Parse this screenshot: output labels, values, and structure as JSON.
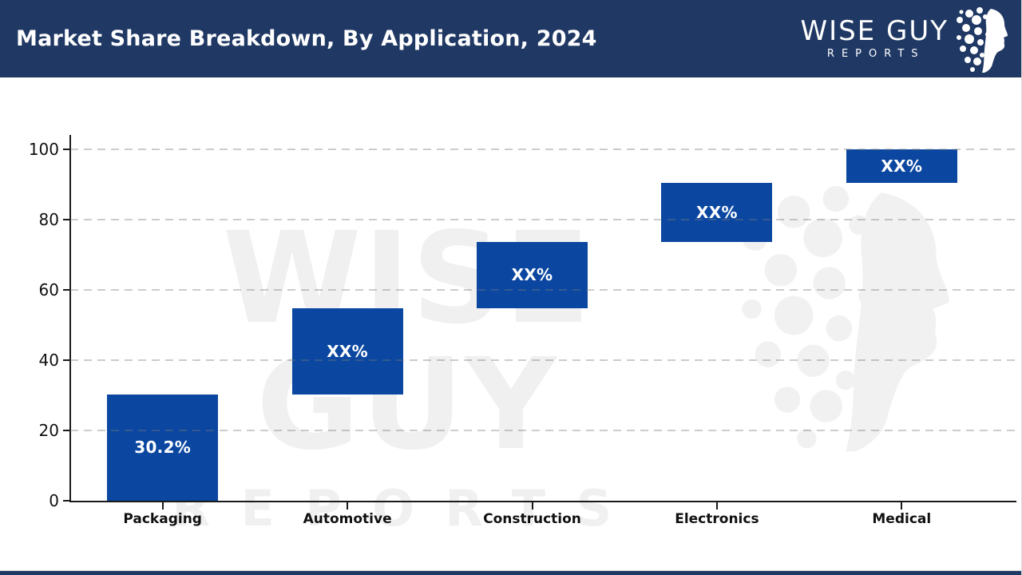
{
  "header": {
    "title": "Market Share Breakdown, By Application, 2024",
    "logo": {
      "line1": "WISE GUY",
      "line2": "REPORTS"
    }
  },
  "watermark": {
    "line1": "WISE GUY",
    "line2": "REPORTS"
  },
  "colors": {
    "header_bg": "#203864",
    "bar": "#0b47a0",
    "grid": "#c8c8c8",
    "watermark": "#f0f0f0",
    "axis": "#1a1a1a"
  },
  "chart_data": {
    "type": "bar",
    "subtype": "waterfall",
    "title": "Market Share Breakdown, By Application, 2024",
    "categories": [
      "Packaging",
      "Automotive",
      "Construction",
      "Electronics",
      "Medical"
    ],
    "segments": [
      {
        "category": "Packaging",
        "start": 0,
        "end": 30.2,
        "label": "30.2%"
      },
      {
        "category": "Automotive",
        "start": 30.2,
        "end": 54.7,
        "label": "XX%"
      },
      {
        "category": "Construction",
        "start": 54.7,
        "end": 73.6,
        "label": "XX%"
      },
      {
        "category": "Electronics",
        "start": 73.6,
        "end": 90.3,
        "label": "XX%"
      },
      {
        "category": "Medical",
        "start": 90.3,
        "end": 100,
        "label": "XX%"
      }
    ],
    "xlabel": "",
    "ylabel": "",
    "yticks": [
      0,
      20,
      40,
      60,
      80,
      100
    ],
    "ylim": [
      0,
      104
    ],
    "grid": "dashed-horizontal",
    "legend": "none"
  }
}
